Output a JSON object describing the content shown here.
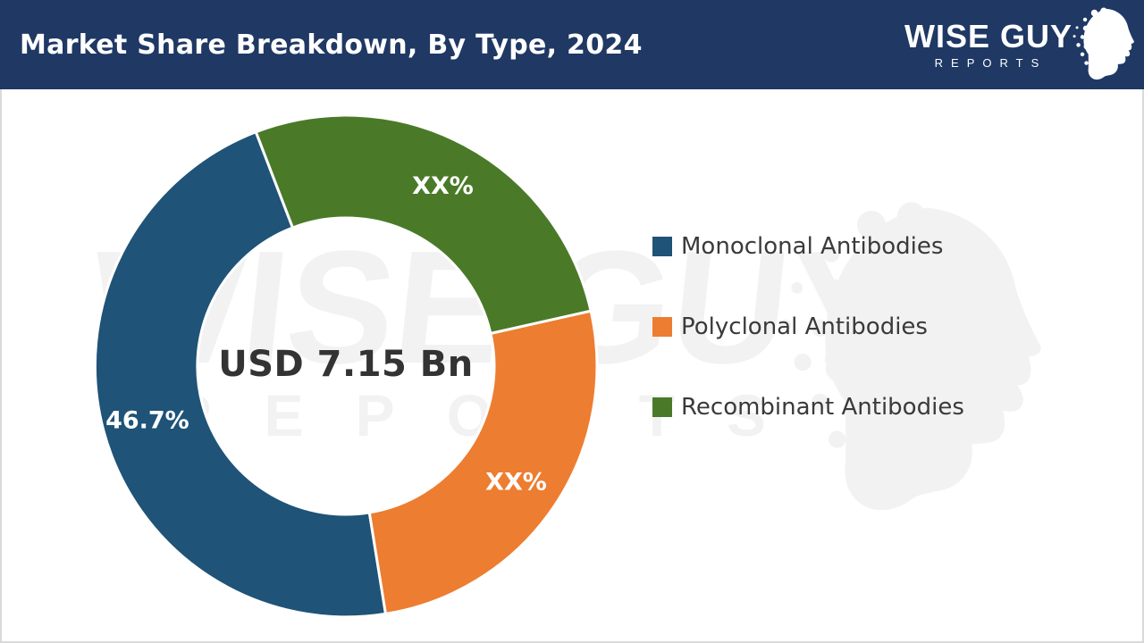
{
  "header": {
    "title": "Market Share Breakdown, By Type, 2024",
    "logo": {
      "name": "WISE GUY",
      "subtitle": "REPORTS"
    }
  },
  "watermark": {
    "line1": "WISE GUY",
    "line2": "REPORTS"
  },
  "chart_data": {
    "type": "pie",
    "subtype": "donut",
    "title": "Market Share Breakdown, By Type, 2024",
    "center_label": "USD 7.15 Bn",
    "start_angle_deg": 111,
    "direction": "counterclockwise",
    "inner_radius_ratio": 0.59,
    "legend_position": "right",
    "segments": [
      {
        "id": "monoclonal",
        "label": "Monoclonal Antibodies",
        "value": 46.7,
        "display_label": "46.7%",
        "color": "#1F5378"
      },
      {
        "id": "polyclonal",
        "label": "Polyclonal Antibodies",
        "value": 26.0,
        "display_label": "XX%",
        "color": "#ED7D31"
      },
      {
        "id": "recombinant",
        "label": "Recombinant Antibodies",
        "value": 27.3,
        "display_label": "XX%",
        "color": "#4A7A28"
      }
    ]
  }
}
